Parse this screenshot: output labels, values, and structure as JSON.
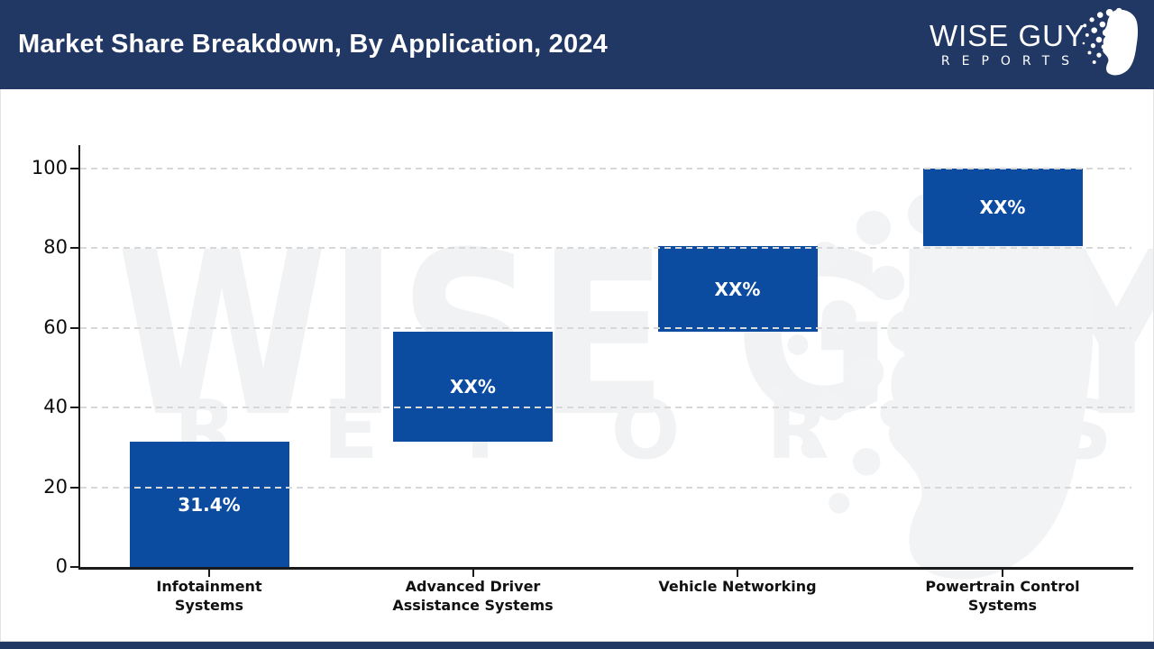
{
  "header": {
    "title": "Market Share Breakdown, By Application, 2024",
    "logo": {
      "brand": "WISE GUY",
      "sub": "REPORTS"
    }
  },
  "watermark": {
    "brand": "WISE GUY",
    "sub": "REPORTS"
  },
  "chart_data": {
    "type": "bar",
    "subtype": "waterfall-floating-bars",
    "title": "Market Share Breakdown, By Application, 2024",
    "categories": [
      "Infotainment Systems",
      "Advanced Driver Assistance Systems",
      "Vehicle Networking",
      "Powertrain Control Systems"
    ],
    "category_lines": [
      [
        "Infotainment",
        "Systems"
      ],
      [
        "Advanced Driver",
        "Assistance Systems"
      ],
      [
        "Vehicle Networking"
      ],
      [
        "Powertrain Control",
        "Systems"
      ]
    ],
    "segments": [
      {
        "category": "Infotainment Systems",
        "base": 0,
        "top": 31.4,
        "label": "31.4%"
      },
      {
        "category": "Advanced Driver Assistance Systems",
        "base": 31.4,
        "top": 59,
        "label": "XX%"
      },
      {
        "category": "Vehicle Networking",
        "base": 59,
        "top": 80.5,
        "label": "XX%"
      },
      {
        "category": "Powertrain Control Systems",
        "base": 80.5,
        "top": 100,
        "label": "XX%"
      }
    ],
    "ylim": [
      0,
      100
    ],
    "yticks": [
      0,
      20,
      40,
      60,
      80,
      100
    ],
    "xlabel": "",
    "ylabel": "",
    "grid": "horizontal-dashed",
    "legend": "none",
    "bar_color": "#0b4ba0",
    "bar_label_color": "#ffffff"
  },
  "colors": {
    "header_bg": "#213764",
    "footer_bg": "#213764",
    "bar": "#0b4ba0",
    "gridline": "#d8d8d8",
    "axis": "#1a1a1a",
    "watermark": "#f1f2f4",
    "title_text": "#ffffff"
  }
}
